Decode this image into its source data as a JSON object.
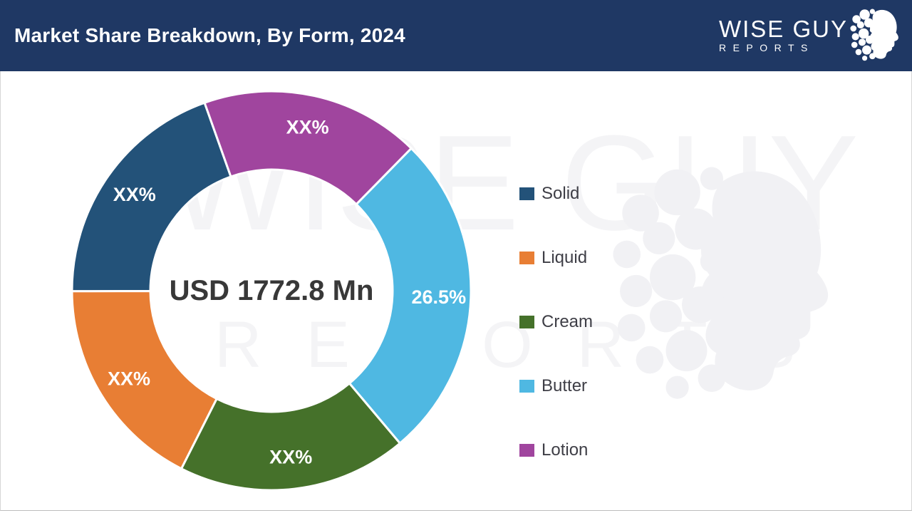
{
  "header": {
    "title": "Market Share Breakdown, By Form, 2024",
    "bg_color": "#1f3864",
    "logo": {
      "line1": "WISE GUY",
      "line2": "REPORTS"
    }
  },
  "watermark": {
    "line1": "WISE GUY",
    "line2": "REPORTS"
  },
  "chart_data": {
    "type": "pie",
    "subtype": "donut",
    "title": "Market Share Breakdown, By Form, 2024",
    "center_label": "USD 1772.8 Mn",
    "legend_position": "right",
    "start_angle_deg": 340.4,
    "segments": [
      {
        "name": "Solid",
        "color": "#235279",
        "label": "XX%",
        "value_pct": null,
        "est_share_pct": 19.6
      },
      {
        "name": "Liquid",
        "color": "#e87e34",
        "label": "XX%",
        "value_pct": null,
        "est_share_pct": 17.5
      },
      {
        "name": "Cream",
        "color": "#45712a",
        "label": "XX%",
        "value_pct": null,
        "est_share_pct": 18.6
      },
      {
        "name": "Butter",
        "color": "#4fb8e2",
        "label": "26.5%",
        "value_pct": 26.5,
        "est_share_pct": 26.5
      },
      {
        "name": "Lotion",
        "color": "#a0459e",
        "label": "XX%",
        "value_pct": null,
        "est_share_pct": 17.8
      }
    ]
  }
}
